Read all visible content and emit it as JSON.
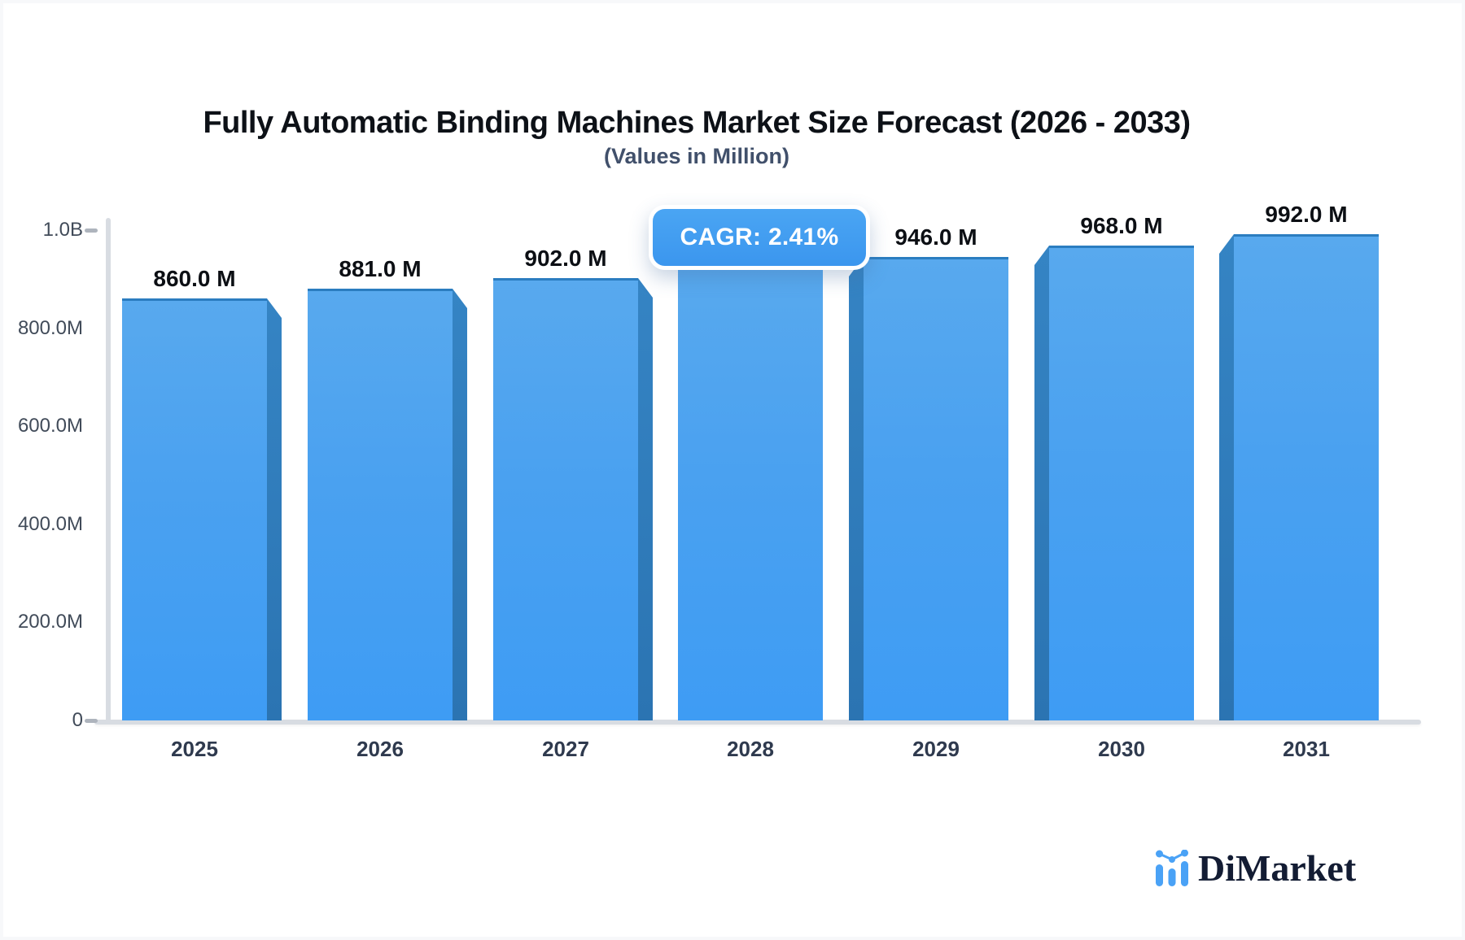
{
  "header": {
    "title": "Fully Automatic Binding Machines Market Size Forecast (2026 - 2033)",
    "subtitle": "(Values in Million)"
  },
  "chart_data": {
    "type": "bar",
    "title": "Fully Automatic Binding Machines Market Size Forecast (2026 - 2033)",
    "subtitle": "(Values in Million)",
    "categories": [
      "2025",
      "2026",
      "2027",
      "2028",
      "2029",
      "2030",
      "2031"
    ],
    "values": [
      860,
      881,
      902,
      924,
      946,
      968,
      992
    ],
    "bar_labels": [
      "860.0 M",
      "881.0 M",
      "902.0 M",
      "",
      "946.0 M",
      "968.0 M",
      "992.0 M"
    ],
    "yticks": [
      {
        "label": "1.0B",
        "value": 1000,
        "dash": true
      },
      {
        "label": "800.0M",
        "value": 800,
        "dash": false
      },
      {
        "label": "600.0M",
        "value": 600,
        "dash": false
      },
      {
        "label": "400.0M",
        "value": 400,
        "dash": false
      },
      {
        "label": "200.0M",
        "value": 200,
        "dash": false
      },
      {
        "label": "0",
        "value": 0,
        "dash": true
      }
    ],
    "ylim": [
      0,
      1000
    ],
    "xlabel": "",
    "ylabel": "",
    "grid": false,
    "legend": "none",
    "annotation": {
      "cagr_label": "CAGR: 2.41%"
    },
    "colors": {
      "bar_face_top": "#58a9ee",
      "bar_face_bottom": "#3e9cf4",
      "bar_side": "#2e7ab8",
      "bar_top_edge": "#2b7dc0",
      "badge_bg": "#3f9ef0",
      "badge_text": "#ffffff",
      "axis_line": "#d8dce2",
      "value_label_text": "#0c0f14",
      "axis_label_text": "#414b59"
    }
  },
  "branding": {
    "logo_text": "DiMarket",
    "logo_icon": "mini-bar-line-chart-icon",
    "logo_text_color": "#131c33",
    "logo_accent_color": "#4aa2f6"
  }
}
